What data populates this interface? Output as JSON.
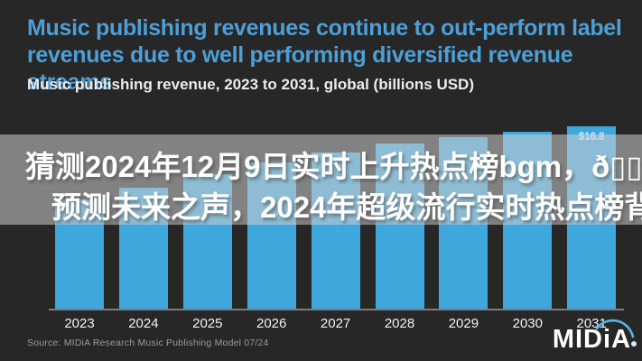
{
  "header": {
    "title": "Music publishing revenues continue to out-perform label revenues due to well performing diversified revenue streams",
    "subtitle": "Music publishing revenue, 2023 to 2031, global (billions USD)"
  },
  "overlay": {
    "line1": "猜测2024年12月9日实时上升热点榜bgm，ð▯▯▯",
    "line2": "预测未来之声，2024年超级流行实时热点榜背"
  },
  "chart_data": {
    "type": "bar",
    "title": "Music publishing revenues continue to out-perform label revenues due to well performing diversified revenue streams",
    "subtitle": "Music publishing revenue, 2023 to 2031, global (billions USD)",
    "categories": [
      "2023",
      "2024",
      "2025",
      "2026",
      "2027",
      "2028",
      "2029",
      "2030",
      "2031"
    ],
    "values": [
      10.1,
      11.2,
      12.4,
      13.5,
      14.4,
      15.2,
      15.8,
      16.3,
      16.8
    ],
    "unit": "billions USD",
    "ylabel": "",
    "xlabel": "",
    "ylim": [
      0,
      17
    ],
    "grid": false,
    "legend": false,
    "bar_color": "#3ea7dc",
    "visible_bar_labels": [
      {
        "category": "2031",
        "text": "$16.8",
        "faint": false
      },
      {
        "category": "2023",
        "text": "$10.1",
        "faint": true
      }
    ]
  },
  "footer": {
    "source": "Source: MIDiA Research Music Publishing Model 07/24",
    "logo_text": "MIDiA"
  },
  "colors": {
    "background": "#272727",
    "title_blue": "#4d9fd6",
    "bar_blue": "#3ea7dc",
    "overlay_band_gray": "rgba(206,206,206,0.55)",
    "logo_arc_cyan": "#57b7e6",
    "axis_gray": "#7d7d7d"
  }
}
